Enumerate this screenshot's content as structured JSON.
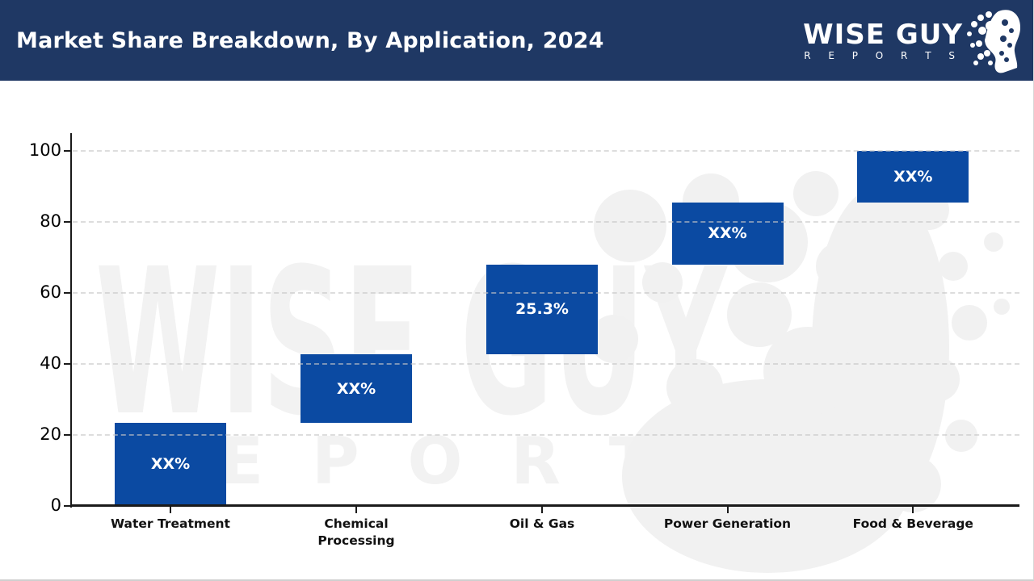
{
  "header": {
    "title": "Market Share Breakdown, By Application, 2024",
    "logo": {
      "line1": "WISE GUY",
      "line2": "R E P O R T S"
    }
  },
  "watermark": {
    "line1": "WISE GUY",
    "line2": "R E P O R T S"
  },
  "chart_data": {
    "type": "bar",
    "subtype": "floating-waterfall",
    "title": "Market Share Breakdown, By Application, 2024",
    "categories": [
      "Water Treatment",
      "Chemical Processing",
      "Oil & Gas",
      "Power Generation",
      "Food & Beverage"
    ],
    "bars": [
      {
        "category": "Water Treatment",
        "start": 0,
        "end": 23.2,
        "value_label": "XX%"
      },
      {
        "category": "Chemical Processing",
        "start": 23.2,
        "end": 42.6,
        "value_label": "XX%"
      },
      {
        "category": "Oil & Gas",
        "start": 42.6,
        "end": 67.9,
        "value_label": "25.3%"
      },
      {
        "category": "Power Generation",
        "start": 67.9,
        "end": 85.3,
        "value_label": "XX%"
      },
      {
        "category": "Food & Beverage",
        "start": 85.3,
        "end": 100,
        "value_label": "XX%"
      }
    ],
    "xlabel": "",
    "ylabel": "",
    "yticks": [
      0,
      20,
      40,
      60,
      80,
      100
    ],
    "ylim": [
      0,
      105
    ],
    "grid": "horizontal-dashed",
    "legend": "none",
    "bar_color": "#0b4aa2",
    "value_label_color": "#ffffff"
  },
  "colors": {
    "header_bg": "#1f3864",
    "title_text": "#ffffff",
    "bar": "#0b4aa2",
    "axis": "#1a1a1a",
    "gridline": "#d9d9d9",
    "watermark": "#f1f1f1"
  }
}
